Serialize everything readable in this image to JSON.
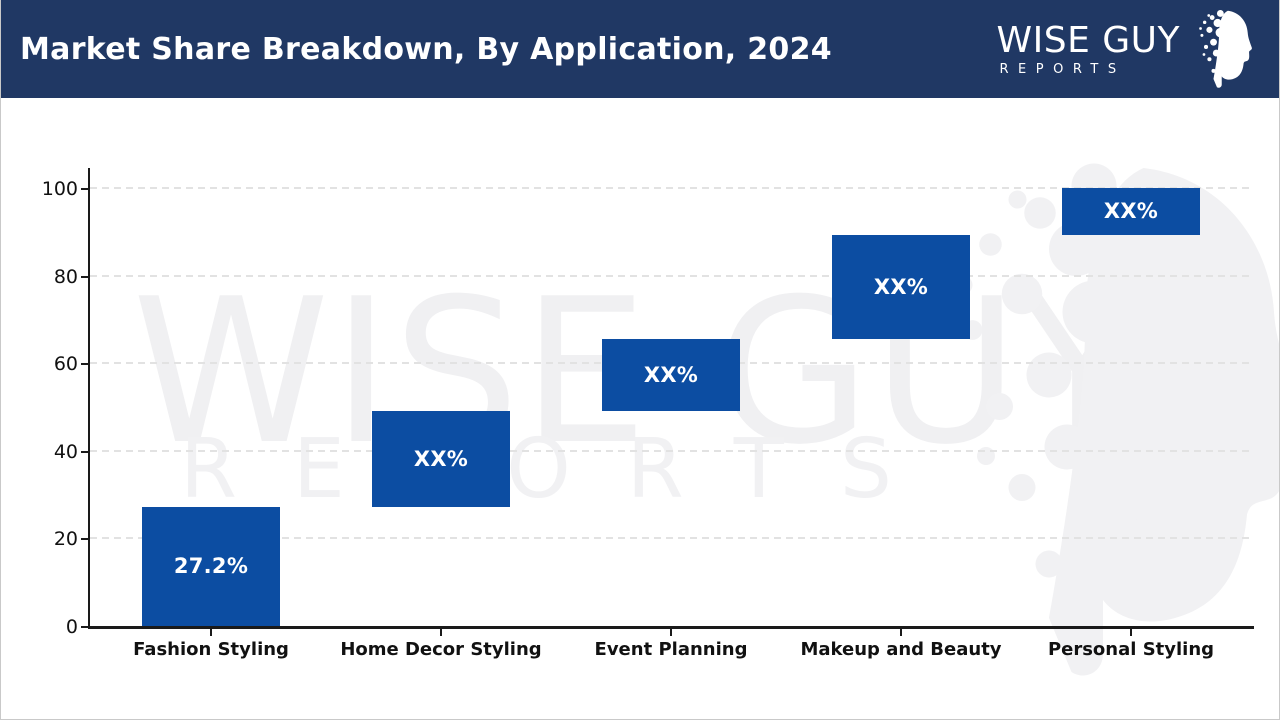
{
  "header": {
    "title": "Market Share Breakdown, By Application, 2024",
    "bg_color": "#203864"
  },
  "brand": {
    "line1": "WISE GUY",
    "line2": "REPORTS"
  },
  "watermark": {
    "line1": "WISE GUY",
    "line2": "REPORTS"
  },
  "chart_data": {
    "type": "bar",
    "subtype": "waterfall",
    "title": "Market Share Breakdown, By Application, 2024",
    "categories": [
      "Fashion Styling",
      "Home Decor Styling",
      "Event Planning",
      "Makeup and Beauty",
      "Personal Styling"
    ],
    "series": [
      {
        "name": "Market Share",
        "segments": [
          {
            "category": "Fashion Styling",
            "from": 0,
            "to": 27.2,
            "label": "27.2%"
          },
          {
            "category": "Home Decor Styling",
            "from": 27.2,
            "to": 49.2,
            "label": "XX%"
          },
          {
            "category": "Event Planning",
            "from": 49.2,
            "to": 65.5,
            "label": "XX%"
          },
          {
            "category": "Makeup and Beauty",
            "from": 65.5,
            "to": 89.3,
            "label": "XX%"
          },
          {
            "category": "Personal Styling",
            "from": 89.3,
            "to": 100,
            "label": "XX%"
          }
        ]
      }
    ],
    "xlabel": "",
    "ylabel": "",
    "ylim": [
      0,
      100
    ],
    "yticks": [
      0,
      20,
      40,
      60,
      80,
      100
    ],
    "grid": "horizontal dashed",
    "legend": "none",
    "bar_color": "#0C4DA2",
    "bar_label_color": "#FFFFFF",
    "axis_color": "#1A1A1A"
  }
}
